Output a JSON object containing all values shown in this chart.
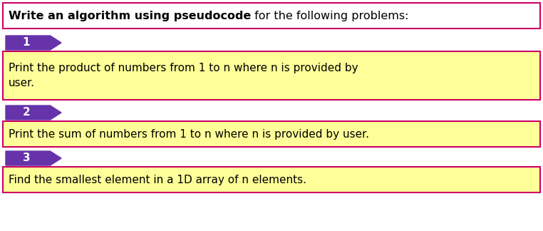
{
  "title_bold": "Write an algorithm using pseudocode",
  "title_normal": " for the following problems:",
  "title_box_color": "#ffffff",
  "title_border_color": "#cc0066",
  "bg_color": "#ffffff",
  "arrow_color": "#6633aa",
  "arrow_text_color": "#ffffff",
  "box_fill_color": "#ffff99",
  "box_border_color": "#cc0066",
  "items": [
    {
      "number": "1",
      "text": "Print the product of numbers from 1 to n where n is provided by\nuser."
    },
    {
      "number": "2",
      "text": "Print the sum of numbers from 1 to n where n is provided by user."
    },
    {
      "number": "3",
      "text": "Find the smallest element in a 1D array of n elements."
    }
  ],
  "title_fontsize": 11.5,
  "item_fontsize": 11,
  "number_fontsize": 11,
  "figwidth": 7.62,
  "figheight": 3.24,
  "dpi": 100
}
